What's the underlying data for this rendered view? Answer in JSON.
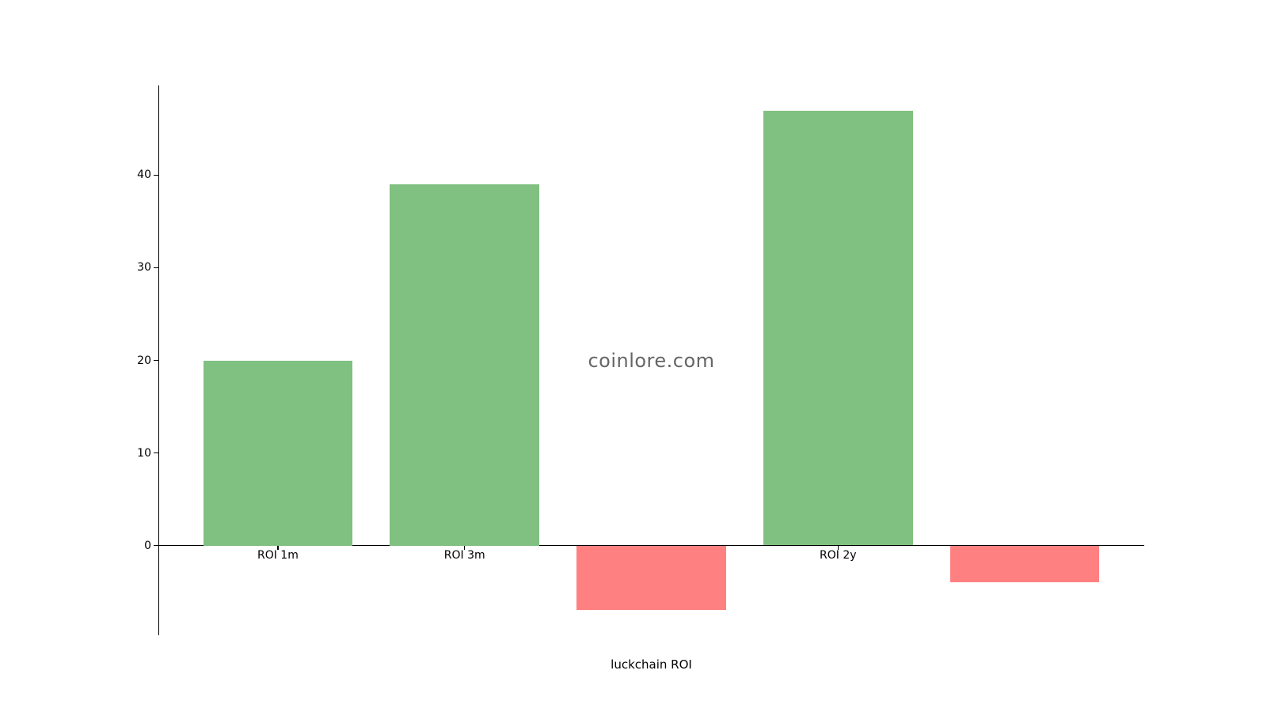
{
  "chart_data": {
    "type": "bar",
    "title": "",
    "xlabel": "luckchain ROI",
    "ylabel": "",
    "categories": [
      "ROI 1m",
      "ROI 3m",
      "",
      "ROI 2y",
      ""
    ],
    "values": [
      20,
      39,
      -7,
      47,
      -4
    ],
    "bar_colors": [
      "#80c080",
      "#80c080",
      "#ff8080",
      "#80c080",
      "#ff8080"
    ],
    "positive_color": "#80c080",
    "negative_color": "#ff8080",
    "yticks": [
      0,
      10,
      20,
      30,
      40
    ],
    "ylim": [
      -9.7,
      49.7
    ],
    "bar_width_fraction": 0.8,
    "grid": false,
    "legend_position": "none",
    "axis_color": "#000000",
    "background_color": "#ffffff"
  },
  "watermark": {
    "text": "coinlore.com",
    "color": "#666666"
  }
}
